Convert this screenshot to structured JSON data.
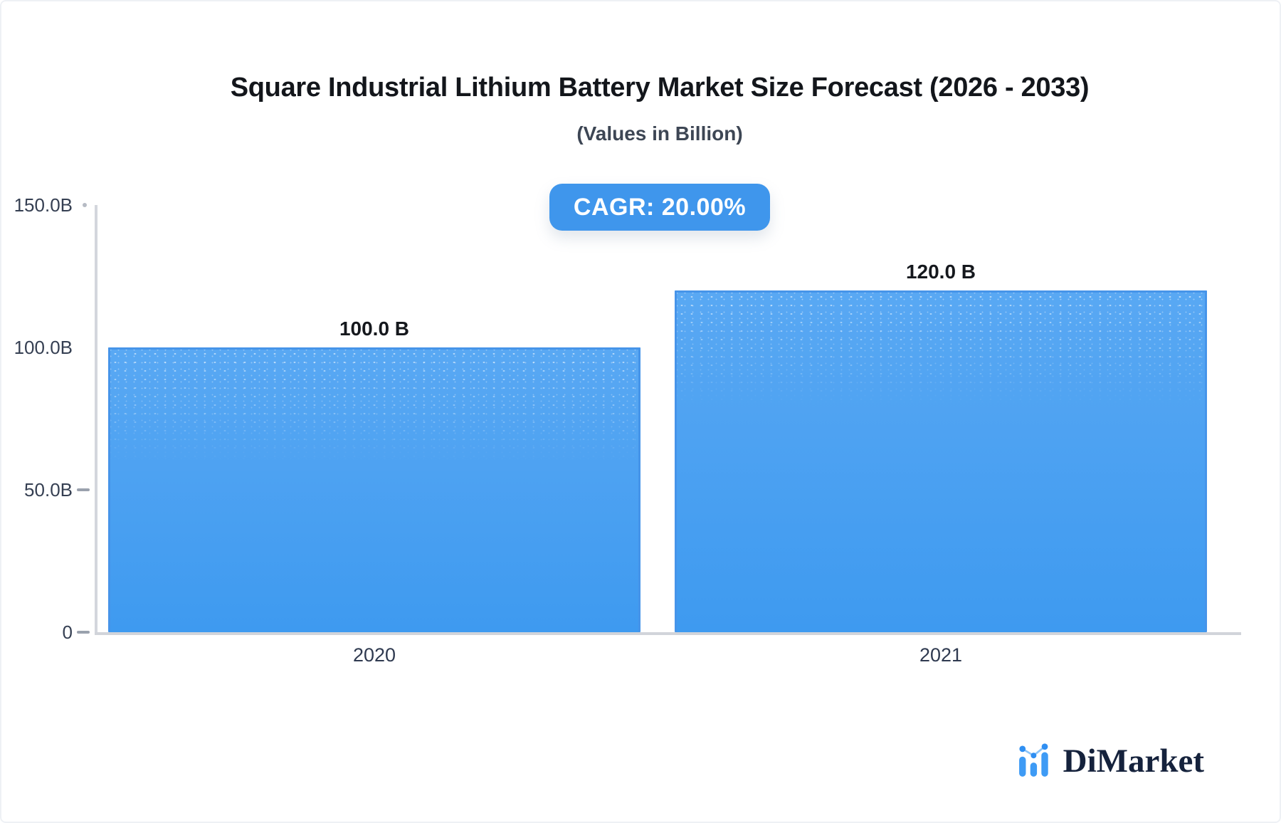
{
  "chart_data": {
    "type": "bar",
    "title": "Square Industrial Lithium Battery Market Size Forecast (2026 - 2033)",
    "subtitle": "(Values in Billion)",
    "categories": [
      "2020",
      "2021"
    ],
    "values": [
      100,
      120
    ],
    "value_labels": [
      "100.0 B",
      "120.0 B"
    ],
    "xlabel": "",
    "ylabel": "",
    "ylim": [
      0,
      150
    ],
    "y_ticks": [
      {
        "label": "150.0B",
        "value": 150,
        "tick": "dot"
      },
      {
        "label": "100.0B",
        "value": 100,
        "tick": "none"
      },
      {
        "label": "50.0B",
        "value": 50,
        "tick": "dash"
      },
      {
        "label": "0",
        "value": 0,
        "tick": "dash"
      }
    ],
    "grid": false,
    "legend": "none",
    "colors": {
      "bar_top": "#59a8f3",
      "bar_bottom": "#3e9af0",
      "bar_border": "#4694e9",
      "axis_line": "#d3d6dd",
      "axis_text": "#353f52"
    }
  },
  "badge": {
    "label": "CAGR: 20.00%",
    "background": "#3f96ec",
    "text_color": "#ffffff"
  },
  "footer": {
    "brand": "DiMarket",
    "logo_icon": "bar-line-chart-icon",
    "brand_blue": "#3e9bf5",
    "brand_navy": "#15223c"
  }
}
